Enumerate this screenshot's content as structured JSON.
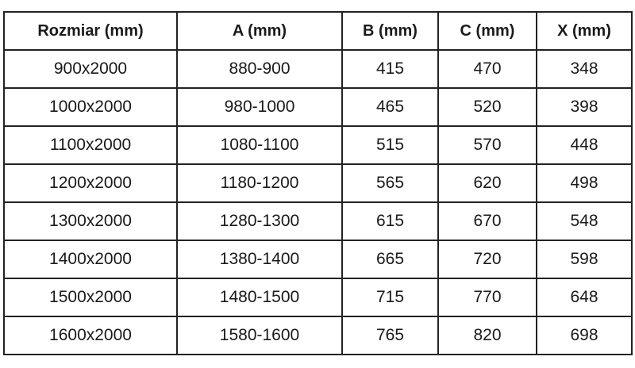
{
  "chart_data": {
    "type": "table",
    "title": "",
    "columns": [
      "Rozmiar (mm)",
      "A (mm)",
      "B (mm)",
      "C (mm)",
      "X (mm)"
    ],
    "rows": [
      [
        "900x2000",
        "880-900",
        "415",
        "470",
        "348"
      ],
      [
        "1000x2000",
        "980-1000",
        "465",
        "520",
        "398"
      ],
      [
        "1100x2000",
        "1080-1100",
        "515",
        "570",
        "448"
      ],
      [
        "1200x2000",
        "1180-1200",
        "565",
        "620",
        "498"
      ],
      [
        "1300x2000",
        "1280-1300",
        "615",
        "670",
        "548"
      ],
      [
        "1400x2000",
        "1380-1400",
        "665",
        "720",
        "598"
      ],
      [
        "1500x2000",
        "1480-1500",
        "715",
        "770",
        "648"
      ],
      [
        "1600x2000",
        "1580-1600",
        "765",
        "820",
        "698"
      ]
    ],
    "layout": {
      "grid": true,
      "header_bold": true,
      "border_color": "#222222",
      "text_color": "#1a1a1a",
      "background_color": "#ffffff"
    }
  }
}
